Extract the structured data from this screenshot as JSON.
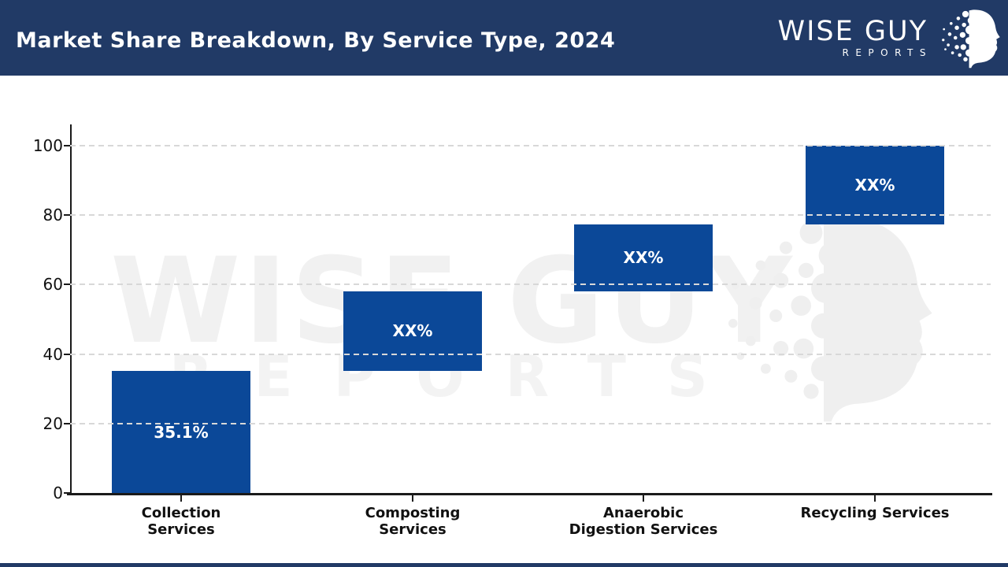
{
  "header": {
    "title": "Market Share Breakdown, By Service Type, 2024"
  },
  "logo": {
    "line1": "WISE GUY",
    "line2": "REPORTS",
    "head_icon": "dotted-face-profile"
  },
  "watermark": {
    "line1": "WISE GUY",
    "line2": "REPORTS",
    "head_icon": "dotted-face-profile"
  },
  "colors": {
    "header_bg": "#213a66",
    "footer_bg": "#213a66",
    "bar_blue": "#0b4898",
    "grid_gray": "#d8d8d8",
    "axis_black": "#1a1a1a",
    "watermark_gray": "#f1f1f1"
  },
  "chart_data": {
    "type": "bar",
    "subtype": "waterfall",
    "title": "Market Share Breakdown, By Service Type, 2024",
    "xlabel": "",
    "ylabel": "",
    "ylim": [
      0,
      105
    ],
    "yticks": [
      0,
      20,
      40,
      60,
      80,
      100
    ],
    "grid": "horizontal dashed, drawn above bars",
    "legend": "none",
    "bar_color": "#0b4898",
    "categories": [
      "Collection Services",
      "Composting Services",
      "Anaerobic Digestion Services",
      "Recycling Services"
    ],
    "category_label_lines": [
      [
        "Collection",
        "Services"
      ],
      [
        "Composting",
        "Services"
      ],
      [
        "Anaerobic",
        "Digestion Services"
      ],
      [
        "Recycling Services"
      ]
    ],
    "segments": [
      {
        "category": "Collection Services",
        "start": 0,
        "end": 35.1,
        "label": "35.1%"
      },
      {
        "category": "Composting Services",
        "start": 35.1,
        "end": 58.1,
        "label": "XX%"
      },
      {
        "category": "Anaerobic Digestion Services",
        "start": 58.1,
        "end": 77.4,
        "label": "XX%"
      },
      {
        "category": "Recycling Services",
        "start": 77.4,
        "end": 100,
        "label": "XX%"
      }
    ]
  }
}
